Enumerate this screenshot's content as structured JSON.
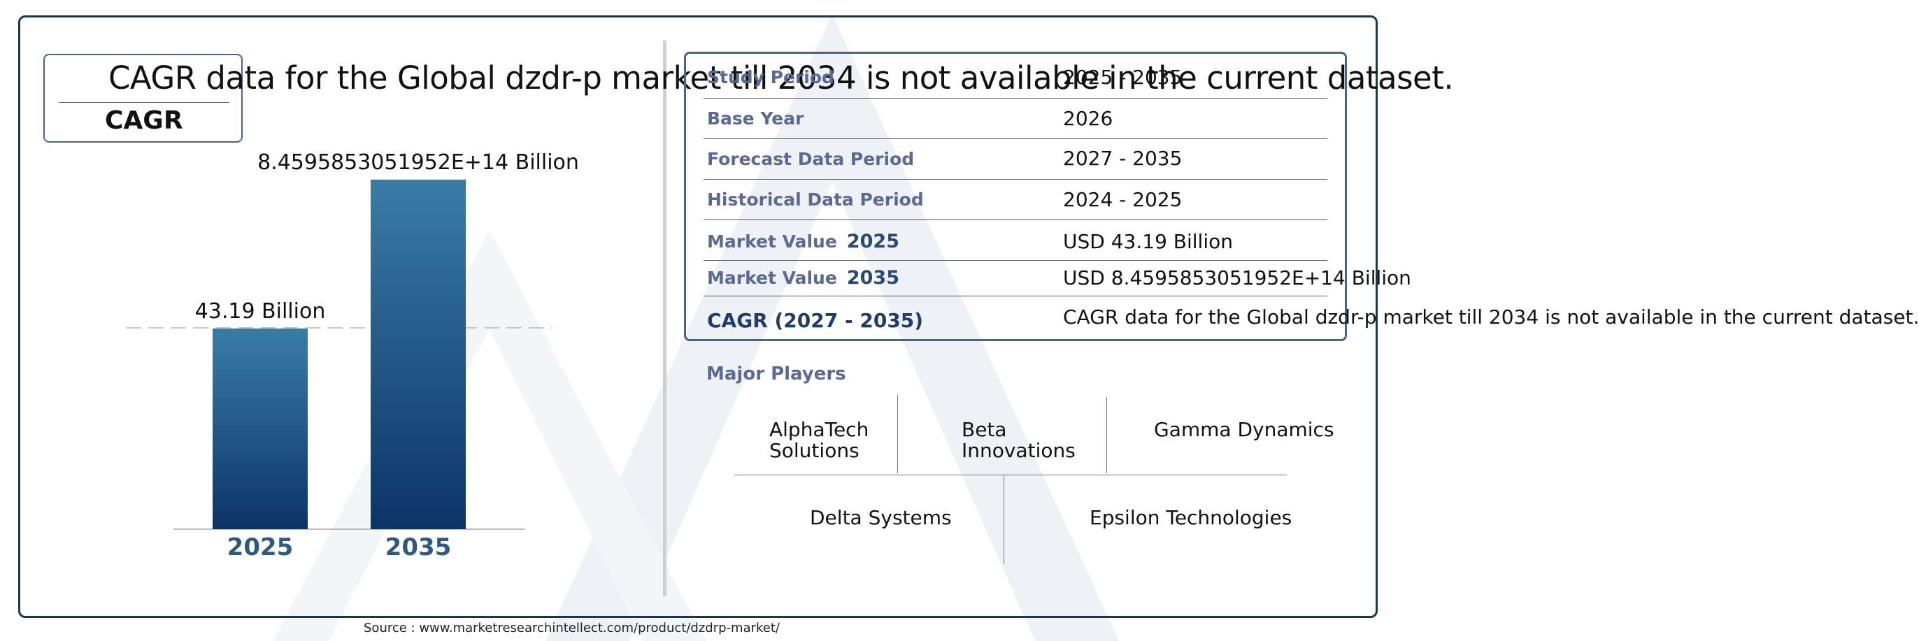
{
  "cagr_box": {
    "label": "CAGR",
    "message": "CAGR data for the Global dzdr-p market till 2034 is not available in the current dataset."
  },
  "chart_data": {
    "type": "bar",
    "categories": [
      "2025",
      "2035"
    ],
    "value_labels": [
      "43.19 Billion",
      "8.4595853051952E+14 Billion"
    ],
    "values": [
      43.19,
      845958530519520
    ],
    "units": "Billion",
    "title": "",
    "xlabel": "",
    "ylabel": "",
    "grid": false,
    "colors": {
      "bar_top": "#3a7ca6",
      "bar_bottom": "#0c3466",
      "tick": "#2f5a7e"
    }
  },
  "table": {
    "rows": [
      {
        "label": "Study Period",
        "value": "2025 - 2035"
      },
      {
        "label": "Base Year",
        "value": "2026"
      },
      {
        "label": "Forecast Data Period",
        "value": "2027 - 2035"
      },
      {
        "label": "Historical Data Period",
        "value": "2024 - 2025"
      },
      {
        "label": "Market Value",
        "year": "2025",
        "value": "USD 43.19 Billion"
      },
      {
        "label": "Market Value",
        "year": "2035",
        "value": "USD 8.4595853051952E+14 Billion"
      },
      {
        "label": "CAGR (2027 - 2035)",
        "value": "CAGR data for the Global dzdr-p market till 2034 is not available in the current dataset."
      }
    ]
  },
  "players": {
    "title": "Major Players",
    "names": [
      "AlphaTech Solutions",
      "Beta Innovations",
      "Gamma Dynamics",
      "Delta Systems",
      "Epsilon Technologies"
    ],
    "line_breaks": [
      [
        "AlphaTech",
        "Solutions"
      ],
      [
        "Beta",
        "Innovations"
      ]
    ]
  },
  "source": "Source : www.marketresearchintellect.com/product/dzdrp-market/"
}
